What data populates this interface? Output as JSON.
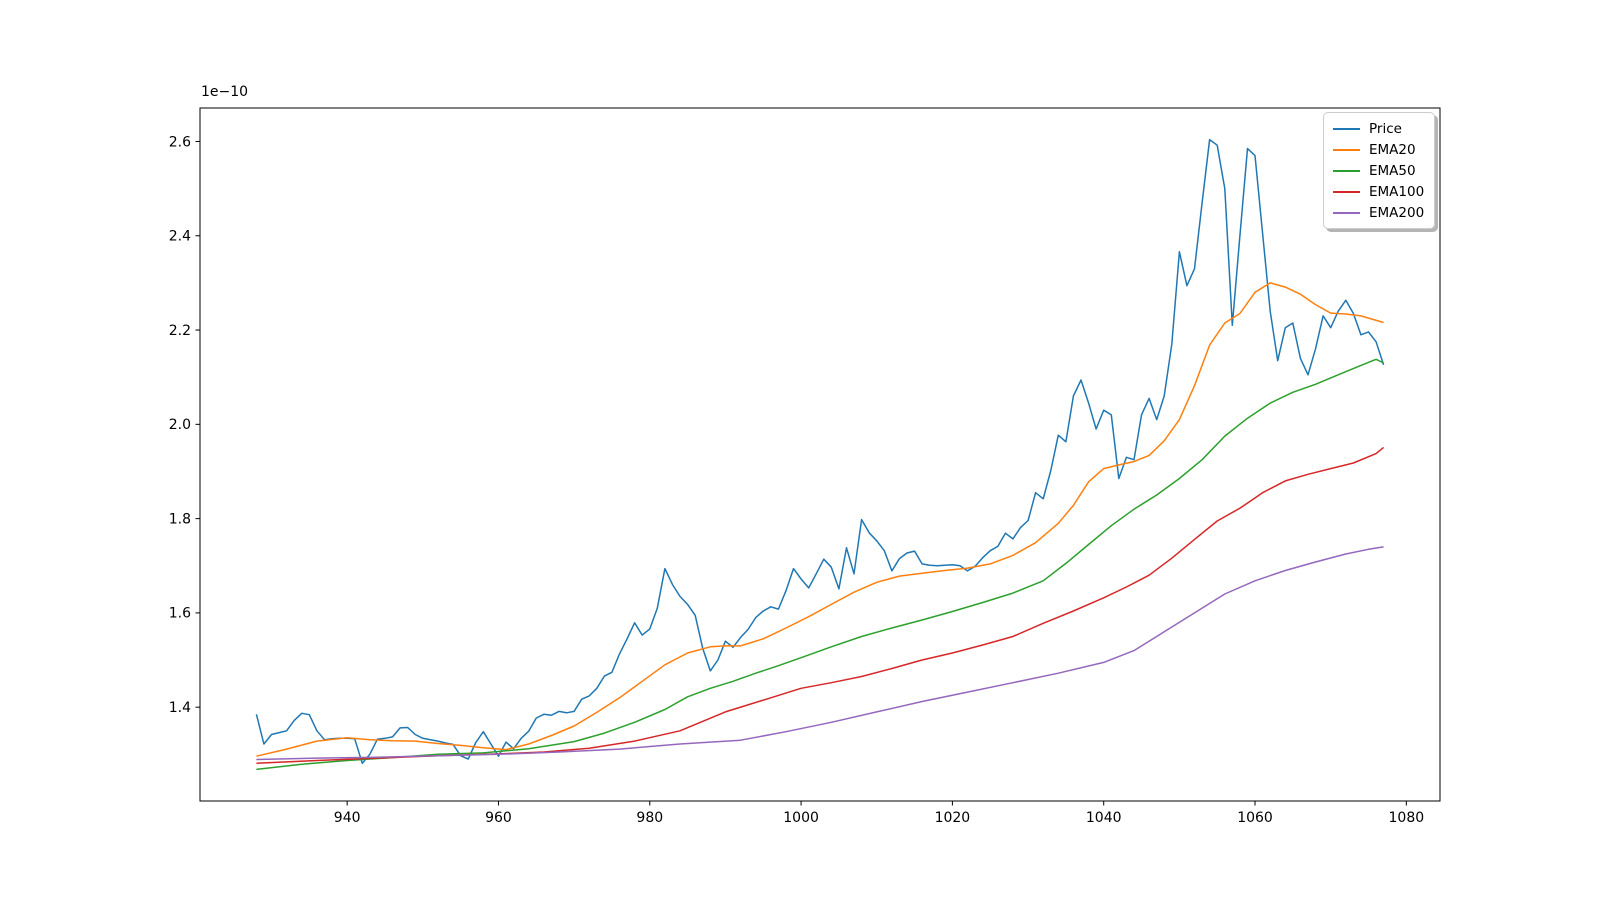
{
  "figure": {
    "background": "#ffffff",
    "plot_border_color": "#000000",
    "tick_color": "#000000"
  },
  "chart_data": {
    "type": "line",
    "title": "",
    "xlabel": "",
    "ylabel": "",
    "offset_text": "1e−10",
    "grid": false,
    "legend_position": "upper right",
    "xlim": [
      920.55,
      1084.45
    ],
    "ylim": [
      1.201,
      2.671
    ],
    "xticks": [
      940,
      960,
      980,
      1000,
      1020,
      1040,
      1060,
      1080
    ],
    "xtick_labels": [
      "940",
      "960",
      "980",
      "1000",
      "1020",
      "1040",
      "1060",
      "1080"
    ],
    "yticks": [
      1.4,
      1.6,
      1.8,
      2.0,
      2.2,
      2.4,
      2.6
    ],
    "ytick_labels": [
      "1.4",
      "1.6",
      "1.8",
      "2.0",
      "2.2",
      "2.4",
      "2.6"
    ],
    "value_scale": "1e-10",
    "series": [
      {
        "name": "Price",
        "color": "#1f77b4",
        "x0": 928,
        "dx": 1,
        "y": [
          1.385,
          1.322,
          1.342,
          1.346,
          1.35,
          1.372,
          1.387,
          1.384,
          1.35,
          1.331,
          1.333,
          1.334,
          1.334,
          1.333,
          1.281,
          1.3,
          1.332,
          1.334,
          1.337,
          1.356,
          1.357,
          1.342,
          1.334,
          1.331,
          1.328,
          1.324,
          1.321,
          1.297,
          1.29,
          1.325,
          1.348,
          1.322,
          1.296,
          1.326,
          1.312,
          1.334,
          1.349,
          1.377,
          1.385,
          1.383,
          1.391,
          1.388,
          1.391,
          1.417,
          1.424,
          1.44,
          1.466,
          1.474,
          1.513,
          1.545,
          1.579,
          1.553,
          1.566,
          1.61,
          1.694,
          1.66,
          1.635,
          1.618,
          1.595,
          1.525,
          1.477,
          1.5,
          1.54,
          1.527,
          1.548,
          1.565,
          1.59,
          1.604,
          1.613,
          1.608,
          1.647,
          1.694,
          1.672,
          1.653,
          1.683,
          1.714,
          1.697,
          1.651,
          1.738,
          1.683,
          1.798,
          1.77,
          1.753,
          1.732,
          1.689,
          1.715,
          1.727,
          1.731,
          1.704,
          1.701,
          1.7,
          1.701,
          1.702,
          1.7,
          1.689,
          1.699,
          1.717,
          1.732,
          1.741,
          1.769,
          1.757,
          1.781,
          1.796,
          1.855,
          1.842,
          1.902,
          1.977,
          1.963,
          2.06,
          2.094,
          2.045,
          1.99,
          2.03,
          2.02,
          1.885,
          1.93,
          1.925,
          2.02,
          2.055,
          2.01,
          2.06,
          2.17,
          2.366,
          2.294,
          2.33,
          2.47,
          2.604,
          2.592,
          2.5,
          2.21,
          2.4,
          2.585,
          2.57,
          2.405,
          2.24,
          2.135,
          2.205,
          2.215,
          2.14,
          2.105,
          2.16,
          2.23,
          2.205,
          2.24,
          2.263,
          2.235,
          2.19,
          2.196,
          2.175,
          2.126
        ]
      },
      {
        "name": "EMA20",
        "color": "#ff7f0e",
        "x": [
          928,
          932,
          936,
          940,
          943,
          946,
          949,
          952,
          955,
          958,
          961,
          964,
          967,
          970,
          973,
          976,
          979,
          982,
          985,
          988,
          990,
          992,
          995,
          998,
          1001,
          1004,
          1007,
          1010,
          1013,
          1016,
          1019,
          1022,
          1025,
          1028,
          1031,
          1034,
          1036,
          1038,
          1040,
          1042,
          1044,
          1046,
          1048,
          1050,
          1052,
          1054,
          1056,
          1058,
          1060,
          1062,
          1064,
          1066,
          1068,
          1070,
          1072,
          1074,
          1077
        ],
        "y": [
          1.296,
          1.311,
          1.328,
          1.335,
          1.331,
          1.329,
          1.328,
          1.323,
          1.319,
          1.314,
          1.31,
          1.322,
          1.34,
          1.36,
          1.389,
          1.42,
          1.455,
          1.49,
          1.515,
          1.528,
          1.53,
          1.53,
          1.545,
          1.568,
          1.592,
          1.618,
          1.644,
          1.665,
          1.678,
          1.684,
          1.69,
          1.695,
          1.704,
          1.722,
          1.749,
          1.79,
          1.828,
          1.878,
          1.906,
          1.914,
          1.921,
          1.934,
          1.965,
          2.01,
          2.082,
          2.168,
          2.215,
          2.235,
          2.28,
          2.3,
          2.291,
          2.276,
          2.254,
          2.236,
          2.234,
          2.23,
          2.216
        ]
      },
      {
        "name": "EMA50",
        "color": "#2ca02c",
        "x": [
          928,
          934,
          940,
          946,
          952,
          958,
          964,
          970,
          974,
          978,
          982,
          985,
          988,
          991,
          994,
          997,
          1000,
          1004,
          1008,
          1012,
          1016,
          1020,
          1024,
          1028,
          1032,
          1035,
          1038,
          1041,
          1044,
          1047,
          1050,
          1053,
          1056,
          1059,
          1062,
          1065,
          1068,
          1071,
          1074,
          1076,
          1077
        ],
        "y": [
          1.268,
          1.279,
          1.287,
          1.293,
          1.3,
          1.303,
          1.312,
          1.327,
          1.345,
          1.368,
          1.395,
          1.422,
          1.44,
          1.455,
          1.472,
          1.488,
          1.505,
          1.528,
          1.55,
          1.568,
          1.585,
          1.603,
          1.622,
          1.642,
          1.668,
          1.705,
          1.745,
          1.785,
          1.82,
          1.85,
          1.885,
          1.925,
          1.975,
          2.013,
          2.045,
          2.068,
          2.085,
          2.105,
          2.125,
          2.138,
          2.13
        ]
      },
      {
        "name": "EMA100",
        "color": "#d62728",
        "x": [
          928,
          936,
          944,
          952,
          960,
          966,
          972,
          978,
          984,
          990,
          996,
          1000,
          1004,
          1008,
          1012,
          1016,
          1020,
          1024,
          1028,
          1032,
          1036,
          1040,
          1043,
          1046,
          1049,
          1052,
          1055,
          1058,
          1061,
          1064,
          1067,
          1070,
          1073,
          1076,
          1077
        ],
        "y": [
          1.281,
          1.287,
          1.292,
          1.297,
          1.301,
          1.305,
          1.313,
          1.328,
          1.35,
          1.39,
          1.42,
          1.44,
          1.452,
          1.465,
          1.482,
          1.5,
          1.515,
          1.532,
          1.55,
          1.578,
          1.604,
          1.632,
          1.655,
          1.68,
          1.716,
          1.756,
          1.795,
          1.822,
          1.855,
          1.88,
          1.894,
          1.906,
          1.918,
          1.938,
          1.951
        ]
      },
      {
        "name": "EMA200",
        "color": "#9467bd",
        "x": [
          928,
          936,
          944,
          952,
          960,
          968,
          976,
          984,
          992,
          998,
          1004,
          1010,
          1016,
          1022,
          1028,
          1034,
          1040,
          1044,
          1048,
          1052,
          1056,
          1060,
          1064,
          1068,
          1072,
          1075,
          1077
        ],
        "y": [
          1.289,
          1.292,
          1.294,
          1.297,
          1.3,
          1.305,
          1.311,
          1.322,
          1.33,
          1.348,
          1.368,
          1.39,
          1.412,
          1.432,
          1.452,
          1.472,
          1.495,
          1.52,
          1.56,
          1.6,
          1.64,
          1.668,
          1.69,
          1.708,
          1.725,
          1.735,
          1.74
        ]
      }
    ]
  }
}
